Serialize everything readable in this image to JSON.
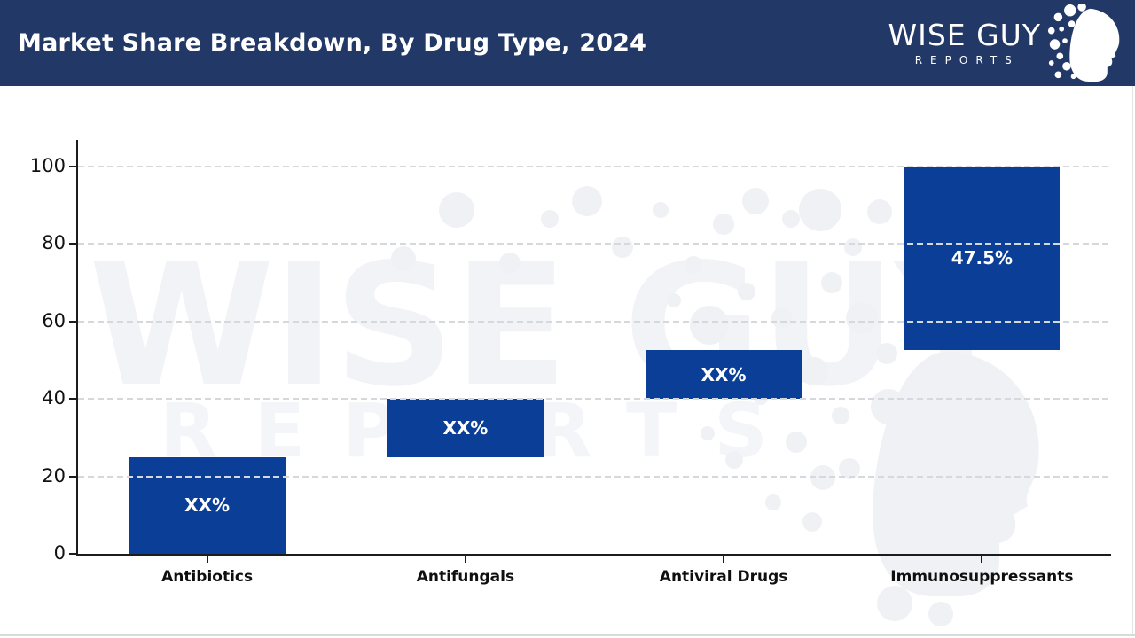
{
  "header": {
    "title": "Market Share Breakdown, By Drug Type, 2024",
    "logo": {
      "line1": "WISE GUY",
      "line2": "REPORTS"
    }
  },
  "watermark": {
    "line1": "WISE GUY",
    "line2": "REPORTS"
  },
  "colors": {
    "header_bg": "#223866",
    "bar_blue": "#0b3f97",
    "bar_label": "#ffffff",
    "grid": "#d6d9dc",
    "axis": "#1c1c1c"
  },
  "chart_data": {
    "type": "bar",
    "variant": "floating-waterfall",
    "title": "Market Share Breakdown, By Drug Type, 2024",
    "categories": [
      "Antibiotics",
      "Antifungals",
      "Antiviral Drugs",
      "Immunosuppressants"
    ],
    "series": [
      {
        "name": "Market Share (%)",
        "segments": [
          {
            "category": "Antibiotics",
            "start": 0,
            "end": 25,
            "label": "XX%"
          },
          {
            "category": "Antifungals",
            "start": 25,
            "end": 40,
            "label": "XX%"
          },
          {
            "category": "Antiviral Drugs",
            "start": 40,
            "end": 52.5,
            "label": "XX%"
          },
          {
            "category": "Immunosuppressants",
            "start": 52.5,
            "end": 100,
            "label": "47.5%"
          }
        ]
      }
    ],
    "xlabel": "",
    "ylabel": "",
    "ylim": [
      0,
      106
    ],
    "yticks": [
      0,
      20,
      40,
      60,
      80,
      100
    ],
    "grid": "horizontal-dashed-over-bars",
    "legend": "none",
    "bar_color": "#0b3f97",
    "bar_value_label_color": "#ffffff"
  }
}
